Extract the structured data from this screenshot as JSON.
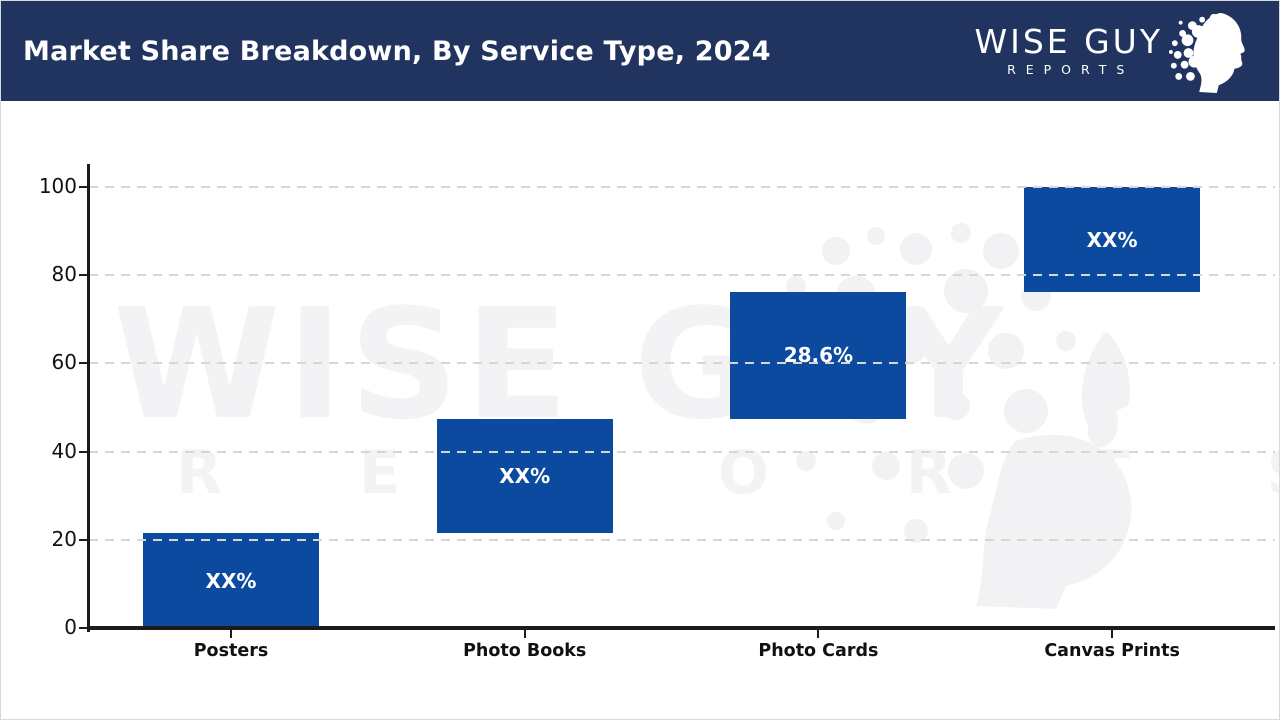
{
  "header": {
    "title": "Market Share Breakdown, By Service Type, 2024",
    "logo": {
      "line1": "WISE GUY",
      "line2": "REPORTS",
      "icon": "dotted-head-profile"
    }
  },
  "watermark": {
    "line1": "WISE GUY",
    "line2": "R E P O R T S"
  },
  "colors": {
    "header_bg": "#21345f",
    "bar": "#0b4a9e",
    "bar_label": "#ffffff",
    "gridline": "#d6d6d6",
    "axis": "#1c1c1c",
    "watermark": "#f3f3f5"
  },
  "chart_data": {
    "type": "bar",
    "subtype": "floating-waterfall",
    "title": "Market Share Breakdown, By Service Type, 2024",
    "categories": [
      "Posters",
      "Photo Books",
      "Photo Cards",
      "Canvas Prints"
    ],
    "segments": [
      {
        "category": "Posters",
        "start": 0,
        "end": 21.5,
        "label": "XX%"
      },
      {
        "category": "Photo Books",
        "start": 21.5,
        "end": 47.5,
        "label": "XX%"
      },
      {
        "category": "Photo Cards",
        "start": 47.5,
        "end": 76.1,
        "label": "28.6%"
      },
      {
        "category": "Canvas Prints",
        "start": 76.1,
        "end": 100,
        "label": "XX%"
      }
    ],
    "xlabel": "",
    "ylabel": "",
    "ylim": [
      0,
      100
    ],
    "yticks": [
      0,
      20,
      40,
      60,
      80,
      100
    ],
    "grid": "horizontal dashed, drawn above bars",
    "legend": "none"
  }
}
